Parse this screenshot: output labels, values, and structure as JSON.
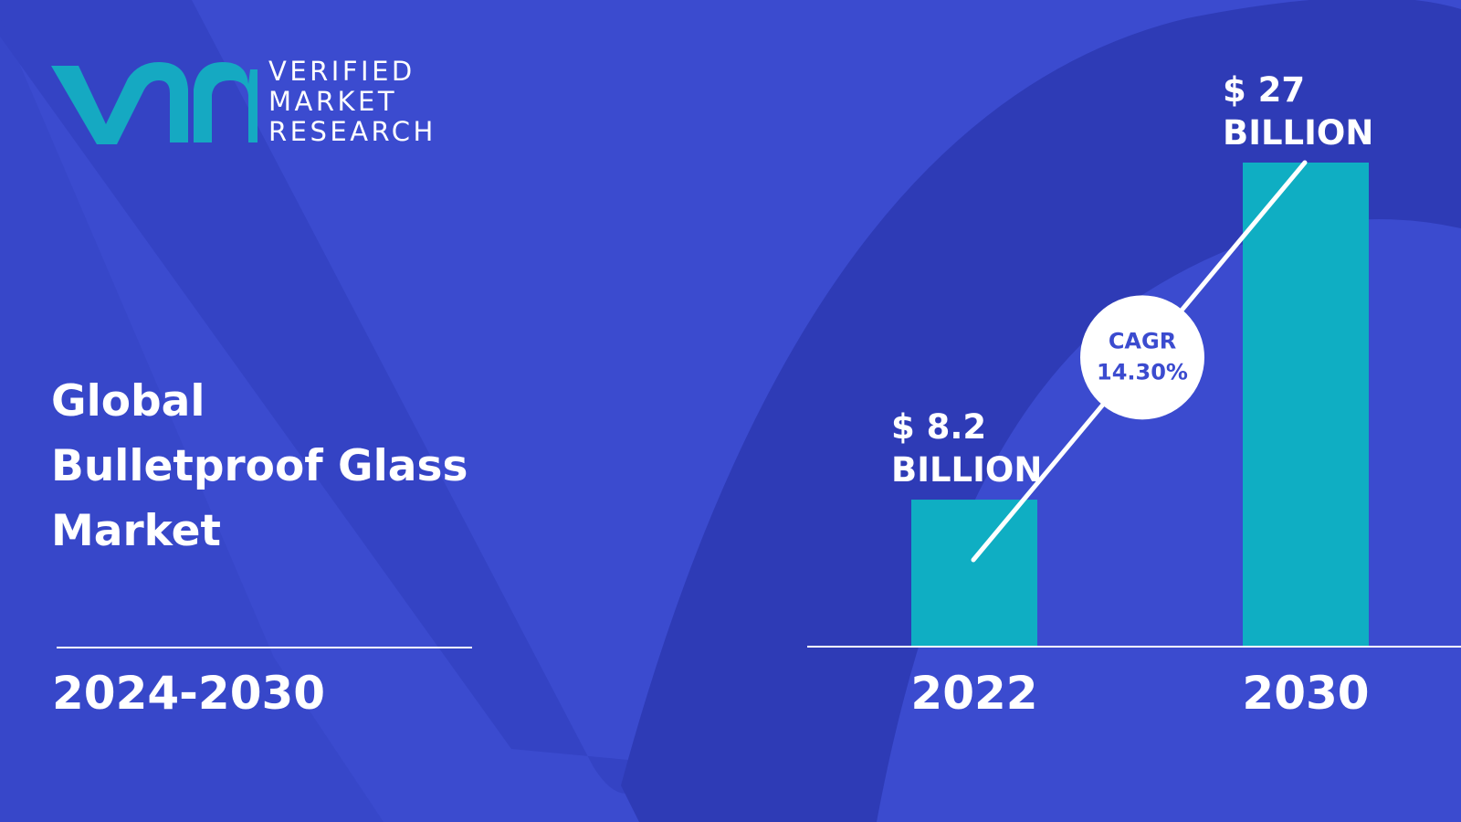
{
  "brand": {
    "lines": [
      "VERIFIED",
      "MARKET",
      "RESEARCH"
    ],
    "accent": "#15a9c2",
    "background": "#3b4bcf",
    "background_shape": "#2e3bb6"
  },
  "report": {
    "title_lines": [
      "Global",
      "Bulletproof Glass",
      "Market"
    ],
    "period": "2024-2030"
  },
  "chart_data": {
    "type": "bar",
    "title": "",
    "xlabel": "",
    "ylabel": "",
    "categories": [
      "2022",
      "2030"
    ],
    "values": [
      8.2,
      27
    ],
    "units": "USD billion",
    "ylim": [
      0,
      27
    ],
    "bar_color": "#0faec3",
    "data_labels": [
      {
        "amount": "$ 8.2",
        "unit": "BILLION"
      },
      {
        "amount": "$ 27",
        "unit": "BILLION"
      }
    ],
    "annotation": {
      "label": "CAGR",
      "value": "14.30%"
    },
    "grid": false,
    "legend": "none"
  }
}
